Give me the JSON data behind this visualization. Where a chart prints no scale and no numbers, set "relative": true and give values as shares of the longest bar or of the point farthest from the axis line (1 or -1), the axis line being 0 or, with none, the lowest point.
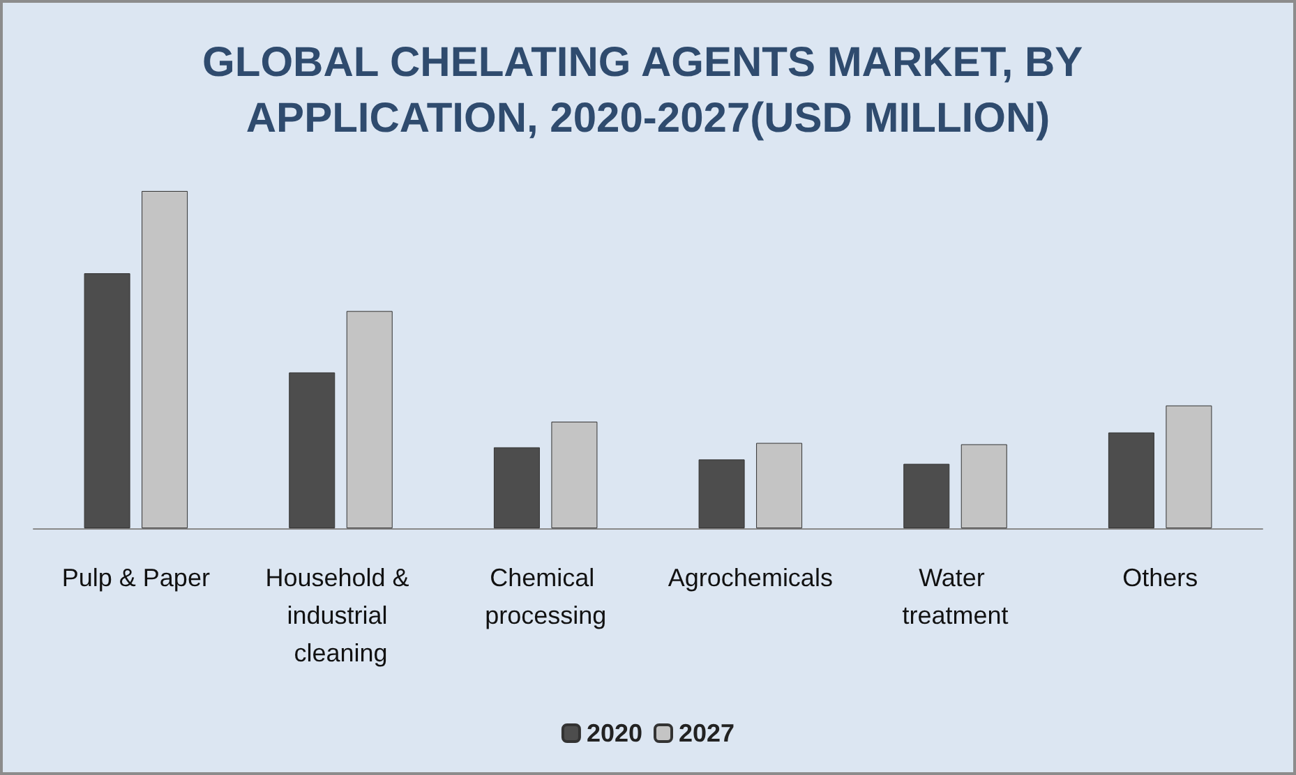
{
  "chart_data": {
    "type": "bar",
    "title": "GLOBAL CHELATING AGENTS MARKET, BY APPLICATION, 2020-2027(USD MILLION)",
    "relative": true,
    "categories": [
      "Pulp & Paper",
      "Household & industrial cleaning",
      "Chemical processing",
      "Agrochemicals",
      "Water treatment",
      "Others"
    ],
    "series": [
      {
        "name": "2020",
        "color": "#4d4d4d",
        "values": [
          0.756,
          0.462,
          0.24,
          0.204,
          0.191,
          0.284
        ]
      },
      {
        "name": "2027",
        "color": "#c4c4c4",
        "values": [
          1,
          0.644,
          0.316,
          0.253,
          0.249,
          0.364
        ]
      }
    ],
    "legend": "bottom"
  }
}
